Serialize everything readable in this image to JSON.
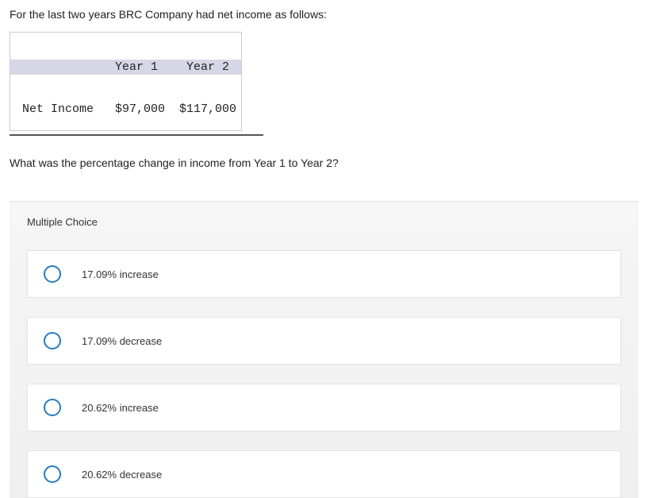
{
  "question": {
    "intro": "For the last two years BRC Company had net income as follows:",
    "prompt": "What was the percentage change in income from Year 1 to Year 2?"
  },
  "table": {
    "header_line": "              Year 1    Year 2",
    "body_line": " Net Income   $97,000  $117,000"
  },
  "mc": {
    "heading": "Multiple Choice",
    "options": [
      {
        "label": "17.09% increase"
      },
      {
        "label": "17.09% decrease"
      },
      {
        "label": "20.62% increase"
      },
      {
        "label": "20.62% decrease"
      }
    ]
  },
  "style": {
    "radio_border_color": "#2a7bbd",
    "table_header_bg": "#d7d6e6"
  }
}
